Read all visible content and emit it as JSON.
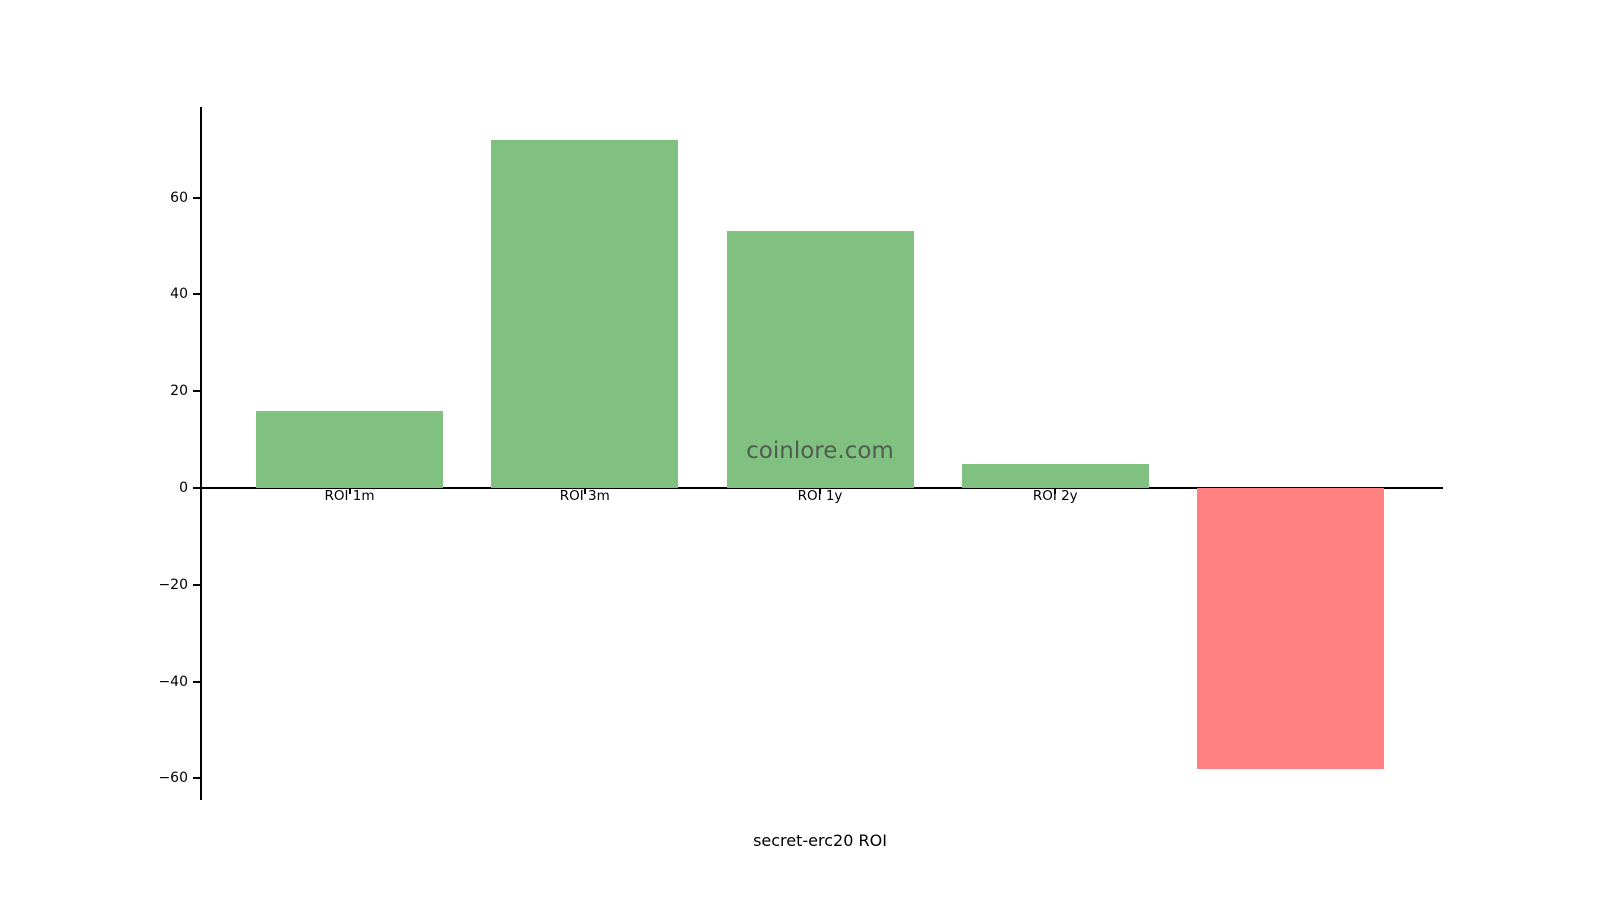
{
  "watermark": "coinlore.com",
  "colors": {
    "positive_bar": "#80c080",
    "negative_bar": "#ff8080",
    "axis": "#000000",
    "watermark_text": "#444444"
  },
  "chart_data": {
    "type": "bar",
    "title": "secret-erc20 ROI",
    "xlabel": "",
    "ylabel": "",
    "categories": [
      "ROI 1m",
      "ROI 3m",
      "ROI 1y",
      "ROI 2y",
      ""
    ],
    "values": [
      16,
      72,
      53,
      5,
      -58
    ],
    "bar_colors": [
      "#80c080",
      "#80c080",
      "#80c080",
      "#80c080",
      "#ff8080"
    ],
    "yticks": [
      60,
      40,
      20,
      0,
      -20,
      -40,
      -60
    ],
    "ylim": [
      -65,
      79
    ],
    "grid": "off",
    "legend": "none",
    "watermark": "coinlore.com"
  }
}
